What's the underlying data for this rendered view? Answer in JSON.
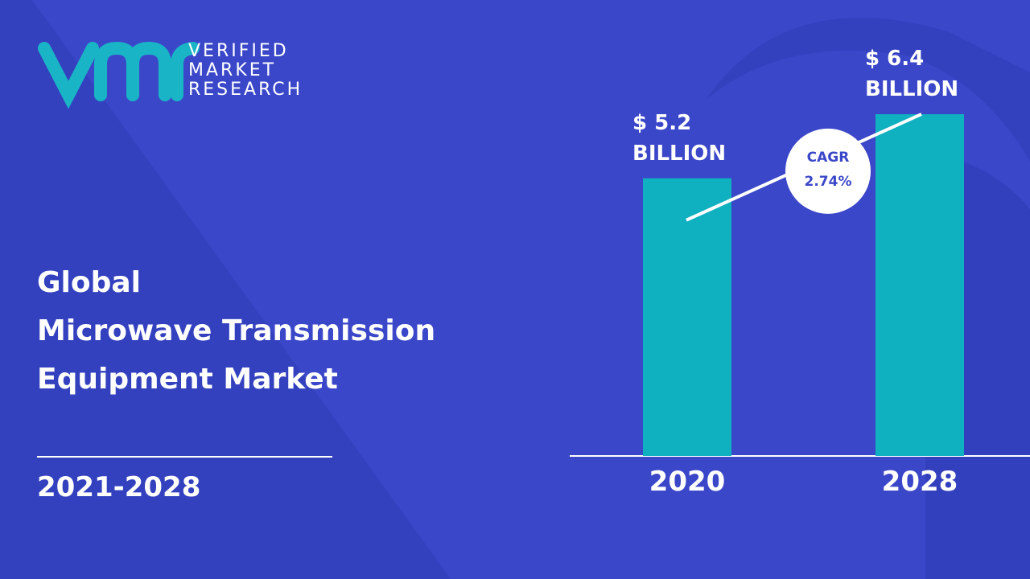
{
  "logo": {
    "lines": [
      "VERIFIED",
      "MARKET",
      "RESEARCH"
    ]
  },
  "title_lines": [
    "Global",
    "Microwave Transmission",
    "Equipment Market"
  ],
  "period": "2021-2028",
  "chart_data": {
    "type": "bar",
    "categories": [
      "2020",
      "2028"
    ],
    "values": [
      5.2,
      6.4
    ],
    "value_labels": [
      "$ 5.2 BILLION",
      "$ 6.4 BILLION"
    ],
    "color": "#0fb0c0",
    "annotation": {
      "label": "CAGR",
      "value": "2.74%"
    }
  }
}
